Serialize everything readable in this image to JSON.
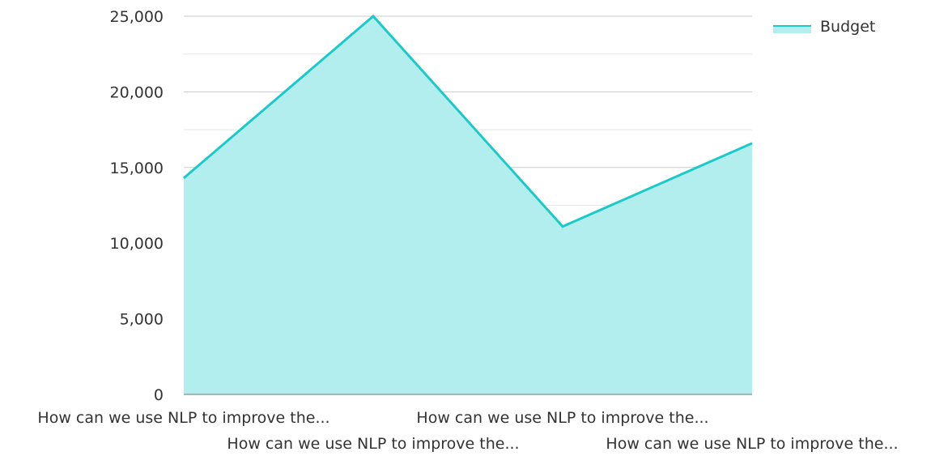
{
  "chart_data": {
    "type": "area",
    "title": "",
    "xlabel": "",
    "ylabel": "",
    "categories": [
      "How can we use NLP to improve the...",
      "How can we use NLP to improve the...",
      "How can we use NLP to improve the...",
      "How can we use NLP to improve the..."
    ],
    "series": [
      {
        "name": "Budget",
        "values": [
          14300,
          25000,
          11100,
          16600
        ],
        "color": "#1cc9c9",
        "fill_color": "#b3eeee"
      }
    ],
    "ylim": [
      0,
      25000
    ],
    "y_ticks": [
      0,
      5000,
      10000,
      15000,
      20000,
      25000
    ],
    "y_tick_labels": [
      "0",
      "5,000",
      "10,000",
      "15,000",
      "20,000",
      "25,000"
    ],
    "grid": true,
    "legend_position": "top-right"
  }
}
